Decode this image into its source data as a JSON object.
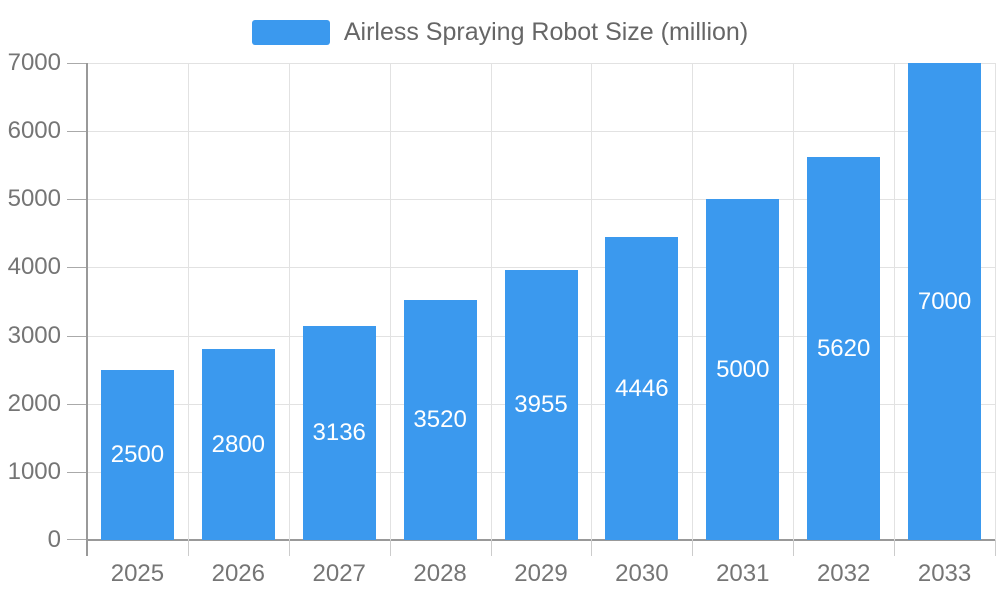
{
  "legend": {
    "label": "Airless Spraying Robot Size (million)"
  },
  "chart_data": {
    "type": "bar",
    "title": "Airless Spraying Robot Size (million)",
    "categories": [
      "2025",
      "2026",
      "2027",
      "2028",
      "2029",
      "2030",
      "2031",
      "2032",
      "2033"
    ],
    "values": [
      2500,
      2800,
      3136,
      3520,
      3955,
      4446,
      5000,
      5620,
      7000
    ],
    "bar_labels": [
      "2500",
      "2800",
      "3136",
      "3520",
      "3955",
      "4446",
      "5000",
      "5620",
      "7000"
    ],
    "xlabel": "",
    "ylabel": "",
    "ylim": [
      0,
      7000
    ],
    "ytick_interval": 1000,
    "yticks": [
      "0",
      "1000",
      "2000",
      "3000",
      "4000",
      "5000",
      "6000",
      "7000"
    ],
    "grid": "on",
    "legend_position": "top-center",
    "colors": {
      "bar": "#3b99ee",
      "bar_label_text": "#ffffff",
      "gridline": "#e2e2e2",
      "axis_line": "#999999",
      "tick_label_text": "#757575",
      "legend_text": "#666666",
      "background": "#ffffff"
    }
  }
}
